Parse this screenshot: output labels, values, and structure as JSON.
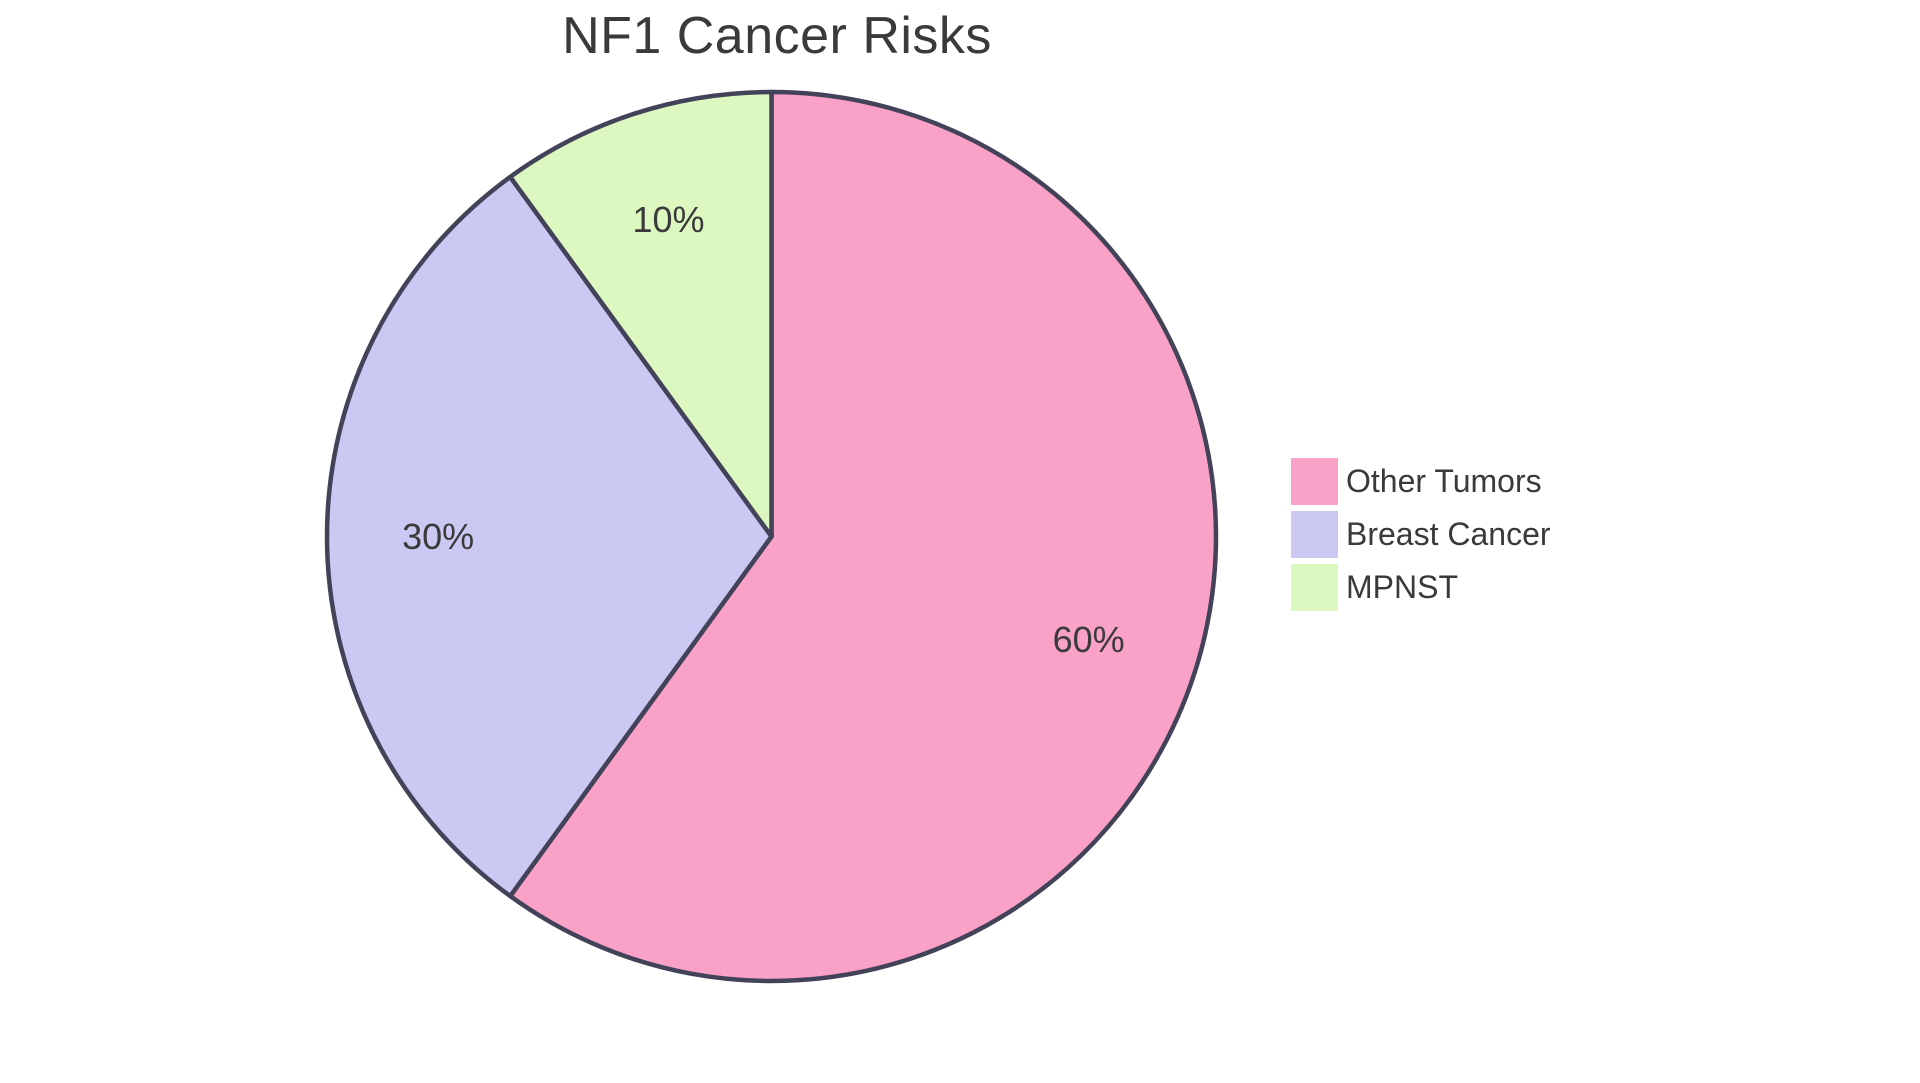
{
  "chart_data": {
    "type": "pie",
    "title": "NF1 Cancer Risks",
    "direction": "clockwise",
    "start_angle_deg": -90,
    "legend_position": "right",
    "background_color": "#FFFFFF",
    "stroke_color": "#424259",
    "text_color": "#3A3A3A",
    "slices": [
      {
        "label": "Other Tumors",
        "value": 60,
        "pct_label": "60%",
        "color": "#FAA1C8"
      },
      {
        "label": "Breast Cancer",
        "value": 30,
        "pct_label": "30%",
        "color": "#CBC8F4"
      },
      {
        "label": "MPNST",
        "value": 10,
        "pct_label": "10%",
        "color": "#DCF7BF"
      }
    ]
  }
}
